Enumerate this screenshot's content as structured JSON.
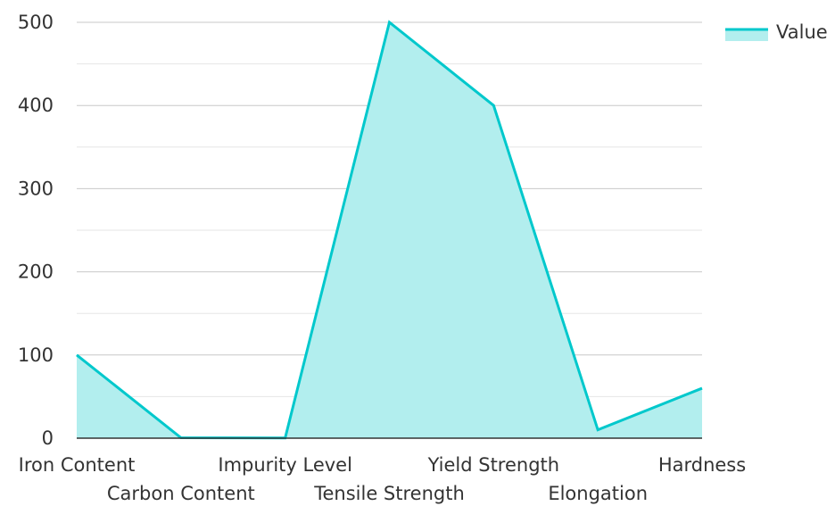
{
  "chart_data": {
    "type": "area",
    "title": "",
    "xlabel": "",
    "ylabel": "",
    "categories": [
      "Iron Content",
      "Carbon Content",
      "Impurity Level",
      "Tensile Strength",
      "Yield Strength",
      "Elongation",
      "Hardness"
    ],
    "series": [
      {
        "name": "Value",
        "values": [
          100,
          0.5,
          0.3,
          500,
          400,
          10,
          60
        ]
      }
    ],
    "ylim": [
      0,
      500
    ],
    "yticks": [
      0,
      100,
      200,
      300,
      400,
      500
    ],
    "grid": true,
    "legend_position": "top-right",
    "colors": {
      "line": "#00c8cc",
      "fill": "#b2eeee",
      "grid_major": "#c8c8c8",
      "grid_minor": "#e6e6e6",
      "axis": "#333333",
      "text": "#333333"
    }
  }
}
